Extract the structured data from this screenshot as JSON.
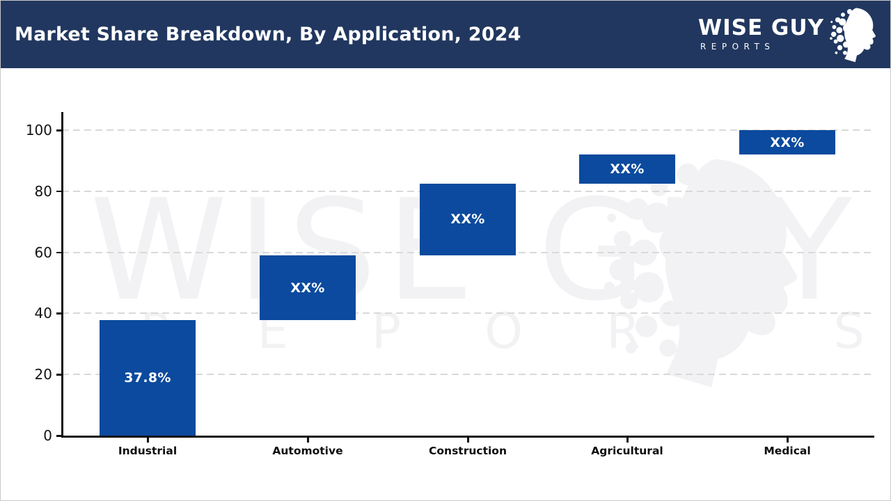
{
  "header": {
    "title": "Market Share Breakdown, By Application, 2024",
    "logo": {
      "line1": "WISE GUY",
      "line2": "REPORTS"
    }
  },
  "watermark": {
    "line1": "WISE GUY",
    "line2": "REPORTS"
  },
  "colors": {
    "header_bg": "#21375f",
    "bar": "#0b4a9e",
    "bar_label": "#ffffff",
    "grid": "#d9d9d9",
    "watermark": "#f2f2f4",
    "axis": "#101010",
    "tick_text": "#141414"
  },
  "chart_data": {
    "type": "bar",
    "subtype": "waterfall",
    "title": "Market Share Breakdown, By Application, 2024",
    "categories": [
      "Industrial",
      "Automotive",
      "Construction",
      "Agricultural",
      "Medical"
    ],
    "segments": [
      {
        "category": "Industrial",
        "start": 0,
        "end": 37.8,
        "label": "37.8%"
      },
      {
        "category": "Automotive",
        "start": 37.8,
        "end": 59.0,
        "label": "XX%"
      },
      {
        "category": "Construction",
        "start": 59.0,
        "end": 82.5,
        "label": "XX%"
      },
      {
        "category": "Agricultural",
        "start": 82.5,
        "end": 92.0,
        "label": "XX%"
      },
      {
        "category": "Medical",
        "start": 92.0,
        "end": 100,
        "label": "XX%"
      }
    ],
    "ylim": [
      0,
      100
    ],
    "yticks": [
      0,
      20,
      40,
      60,
      80,
      100
    ],
    "xlabel": "",
    "ylabel": "",
    "grid": "horizontal-dashed",
    "legend": "none"
  }
}
